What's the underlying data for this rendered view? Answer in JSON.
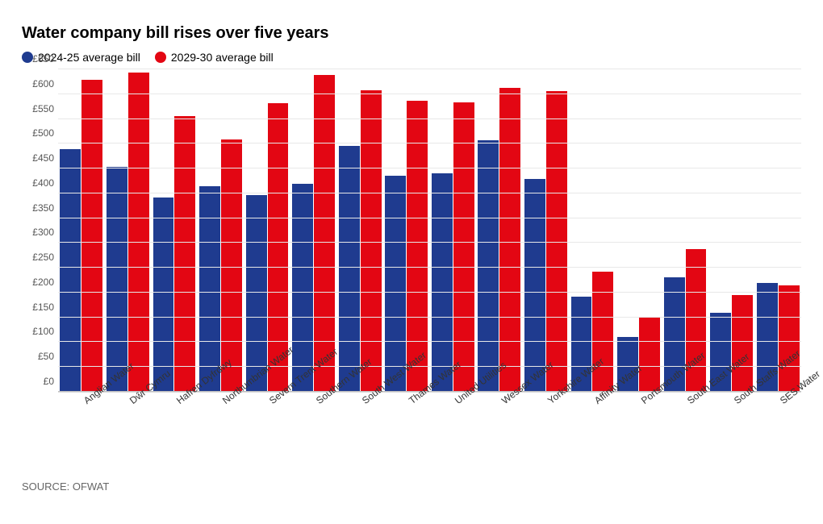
{
  "chart": {
    "type": "bar",
    "title": "Water company bill rises over five years",
    "legend": {
      "series_a": {
        "label": "2024-25 average bill",
        "color": "#1f3b8f"
      },
      "series_b": {
        "label": "2029-30 average bill",
        "color": "#e30613"
      }
    },
    "currency_prefix": "£",
    "ylim": [
      0,
      650
    ],
    "ytick_step": 50,
    "background_color": "#ffffff",
    "grid_color": "#e8e8e8",
    "axis_color": "#bfbfbf",
    "bar_width_pct": 45,
    "categories": [
      "Anglian Water",
      "Dŵr Cymru",
      "Hafren Dyfrdwy",
      "Northumbrian Water",
      "Severn Trent Water",
      "Southern Water",
      "South West Water",
      "Thames Water",
      "United Utilities",
      "Wessex Water",
      "Yorkshire Water",
      "Affinity Water",
      "Portsmouth Water",
      "South East Water",
      "South Staffs Water",
      "SES Water"
    ],
    "series_a_values": [
      490,
      455,
      392,
      415,
      398,
      420,
      497,
      436,
      442,
      508,
      430,
      192,
      110,
      232,
      160,
      220
    ],
    "series_b_values": [
      630,
      645,
      557,
      510,
      583,
      640,
      610,
      588,
      585,
      614,
      607,
      242,
      150,
      288,
      195,
      215
    ],
    "source": "SOURCE: OFWAT"
  }
}
